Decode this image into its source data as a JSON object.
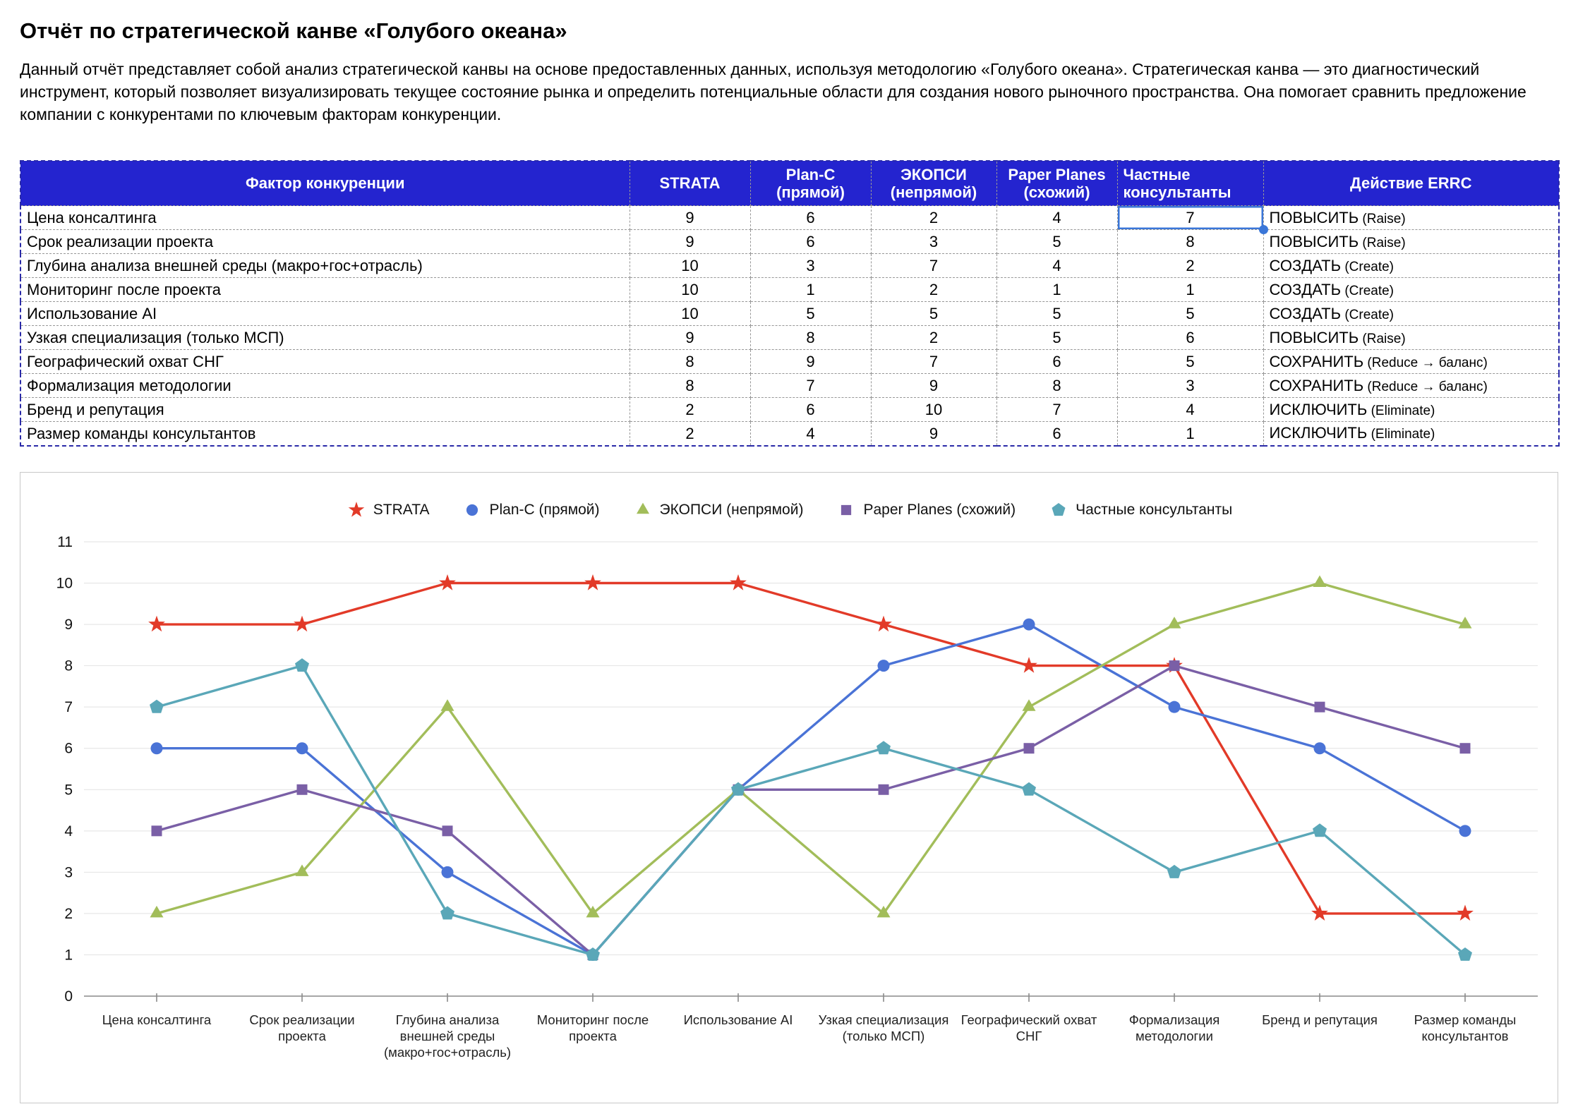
{
  "page": {
    "title": "Отчёт по стратегической канве «Голубого океана»",
    "intro": "Данный отчёт представляет собой анализ стратегической канвы на основе предоставленных данных, используя методологию «Голубого океана». Стратегическая канва — это диагностический инструмент, который позволяет визуализировать текущее состояние рынка и определить потенциальные области для создания нового рыночного пространства. Она помогает сравнить предложение компании с конкурентами по ключевым факторам конкуренции."
  },
  "table": {
    "headers": [
      "Фактор конкуренции",
      "STRATA",
      "Plan-C (прямой)",
      "ЭКОПСИ (непрямой)",
      "Paper Planes (схожий)",
      "Частные консультанты",
      "Действие ERRC"
    ],
    "rows": [
      {
        "factor": "Цена консалтинга",
        "values": [
          9,
          6,
          2,
          4,
          7
        ],
        "action": "ПОВЫСИТЬ",
        "action_detail": "(Raise)"
      },
      {
        "factor": "Срок реализации проекта",
        "values": [
          9,
          6,
          3,
          5,
          8
        ],
        "action": "ПОВЫСИТЬ",
        "action_detail": "(Raise)"
      },
      {
        "factor": "Глубина анализа внешней среды (макро+гос+отрасль)",
        "values": [
          10,
          3,
          7,
          4,
          2
        ],
        "action": "СОЗДАТЬ",
        "action_detail": "(Create)"
      },
      {
        "factor": "Мониторинг после проекта",
        "values": [
          10,
          1,
          2,
          1,
          1
        ],
        "action": "СОЗДАТЬ",
        "action_detail": "(Create)"
      },
      {
        "factor": "Использование AI",
        "values": [
          10,
          5,
          5,
          5,
          5
        ],
        "action": "СОЗДАТЬ",
        "action_detail": "(Create)"
      },
      {
        "factor": "Узкая специализация (только МСП)",
        "values": [
          9,
          8,
          2,
          5,
          6
        ],
        "action": "ПОВЫСИТЬ",
        "action_detail": "(Raise)"
      },
      {
        "factor": "Географический охват СНГ",
        "values": [
          8,
          9,
          7,
          6,
          5
        ],
        "action": "СОХРАНИТЬ",
        "action_detail": "(Reduce → баланс)"
      },
      {
        "factor": "Формализация методологии",
        "values": [
          8,
          7,
          9,
          8,
          3
        ],
        "action": "СОХРАНИТЬ",
        "action_detail": "(Reduce → баланс)"
      },
      {
        "factor": "Бренд и репутация",
        "values": [
          2,
          6,
          10,
          7,
          4
        ],
        "action": "ИСКЛЮЧИТЬ",
        "action_detail": "(Eliminate)"
      },
      {
        "factor": "Размер команды консультантов",
        "values": [
          2,
          4,
          9,
          6,
          1
        ],
        "action": "ИСКЛЮЧИТЬ",
        "action_detail": "(Eliminate)"
      }
    ],
    "selection": {
      "row": 0,
      "value_col": 4,
      "selected_value": "7",
      "color": "#3a76d8"
    },
    "header_bg": "#2424cf"
  },
  "chart_data": {
    "type": "line",
    "title": "",
    "categories": [
      "Цена консалтинга",
      "Срок реализации проекта",
      "Глубина анализа внешней среды (макро+гос+отрасль)",
      "Мониторинг после проекта",
      "Использование AI",
      "Узкая специализация (только МСП)",
      "Географический охват СНГ",
      "Формализация методологии",
      "Бренд и репутация",
      "Размер команды консультантов"
    ],
    "series": [
      {
        "name": "STRATA",
        "marker": "star",
        "color": "#e23a28",
        "values": [
          9,
          9,
          10,
          10,
          10,
          9,
          8,
          8,
          2,
          2
        ]
      },
      {
        "name": "Plan-C (прямой)",
        "marker": "circle",
        "color": "#4a73d6",
        "values": [
          6,
          6,
          3,
          1,
          5,
          8,
          9,
          7,
          6,
          4
        ]
      },
      {
        "name": "ЭКОПСИ (непрямой)",
        "marker": "triangle",
        "color": "#a2bd5a",
        "values": [
          2,
          3,
          7,
          2,
          5,
          2,
          7,
          9,
          10,
          9
        ]
      },
      {
        "name": "Paper Planes (схожий)",
        "marker": "square",
        "color": "#7a5fa6",
        "values": [
          4,
          5,
          4,
          1,
          5,
          5,
          6,
          8,
          7,
          6
        ]
      },
      {
        "name": "Частные консультанты",
        "marker": "pentagon",
        "color": "#5aa7b8",
        "values": [
          7,
          8,
          2,
          1,
          5,
          6,
          5,
          3,
          4,
          1
        ]
      }
    ],
    "ylim": [
      0,
      11
    ],
    "yticks": [
      0,
      1,
      2,
      3,
      4,
      5,
      6,
      7,
      8,
      9,
      10,
      11
    ],
    "grid": true,
    "legend_position": "top"
  }
}
